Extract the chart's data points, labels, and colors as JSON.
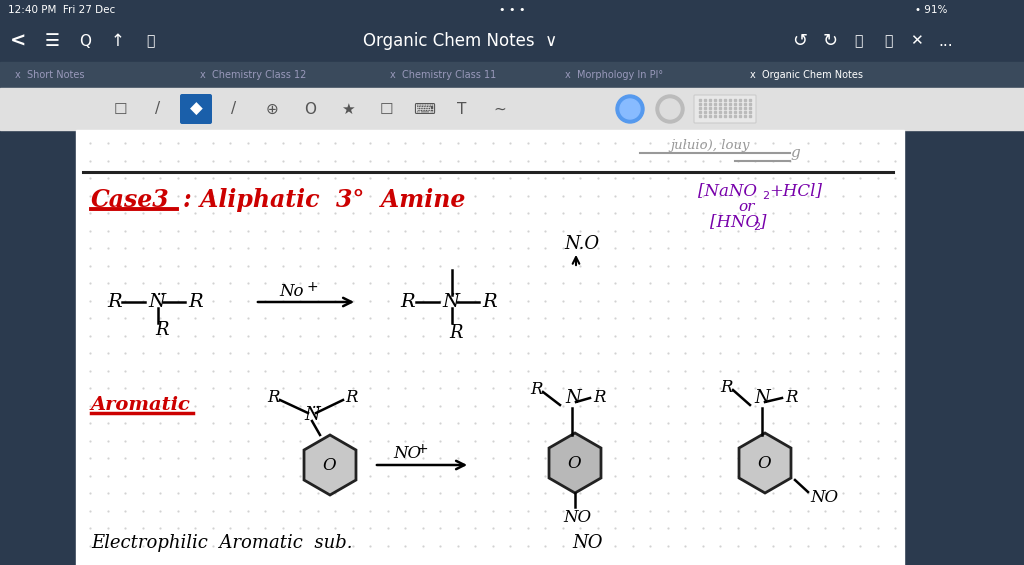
{
  "bg_dark": "#2b3a4e",
  "bg_tabs": "#3a4a5c",
  "bg_toolbar": "#e0e0e0",
  "bg_note": "#f8f8f8",
  "bg_white": "#ffffff",
  "red": "#cc0000",
  "purple": "#7700aa",
  "black": "#111111",
  "gray_dot": "#c8c8c8",
  "hex_gray": "#b8b8b8",
  "hex_gray2": "#c8c8c8",
  "hex_outline": "#222222",
  "status_text": "12:40 PM  Fri 27 Dec",
  "nav_title": "Organic Chem Notes",
  "tabs": [
    "Short Notes",
    "Chemistry Class 12",
    "Chemistry Class 11",
    "Morphology In Pl°",
    "Organic Chem Notes"
  ],
  "case_text": "Case3 : Aliphatic  3°  Amine",
  "reagent1": "[NaNO",
  "reagent2": "+HCl]",
  "reagent3": "or",
  "reagent4": "[HNO",
  "reagent_sub": "2",
  "reagent_sub2": "2",
  "aromatic_text": "Aromatic",
  "bottom_text": "Electrophilic  Aromatic  sub."
}
